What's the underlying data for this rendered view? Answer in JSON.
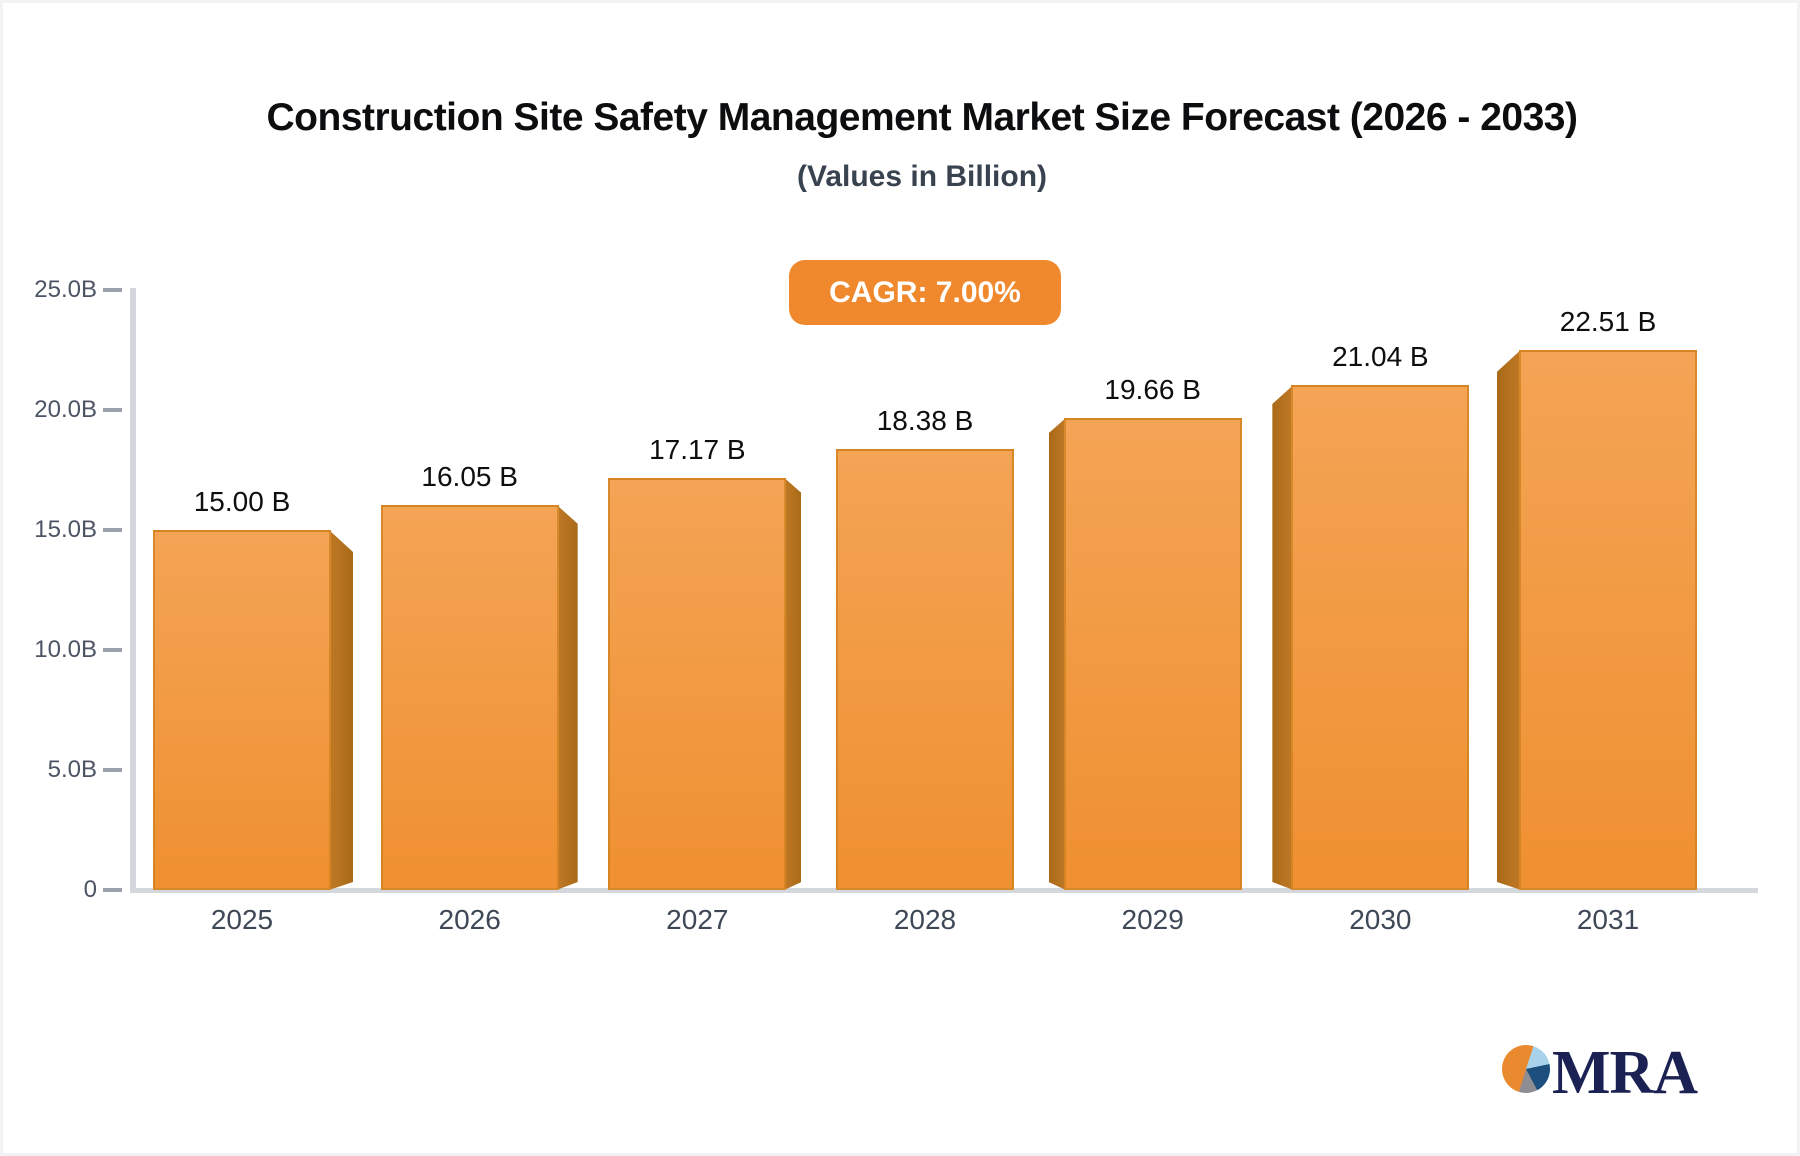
{
  "page": {
    "title": "Construction Site Safety Management Market Size Forecast (2026 - 2033)",
    "subtitle": "(Values in Billion)",
    "cagr_badge": "CAGR: 7.00%",
    "logo_text": "MRA"
  },
  "colors": {
    "bar_face_top": "#F4A455",
    "bar_face_bottom": "#EF9031",
    "bar_side": "#B26F1D",
    "badge_background": "#F0892E",
    "axis_line": "#D4D7DC",
    "tick_dash": "#9AA2AD",
    "axis_text": "#4C5565",
    "value_label_text": "#0D0E10",
    "logo_navy": "#1B2153",
    "logo_pie_orange": "#EA8A2E",
    "logo_pie_light_blue": "#A7D2EA",
    "logo_pie_dark_blue": "#1C4E7E",
    "logo_pie_gray": "#8E8E92"
  },
  "chart_data": {
    "type": "bar",
    "title": "Construction Site Safety Management Market Size Forecast (2026 - 2033)",
    "subtitle": "(Values in Billion)",
    "annotation": "CAGR: 7.00%",
    "categories": [
      "2025",
      "2026",
      "2027",
      "2028",
      "2029",
      "2030",
      "2031"
    ],
    "values": [
      15.0,
      16.05,
      17.17,
      18.38,
      19.66,
      21.04,
      22.51
    ],
    "value_labels": [
      "15.00 B",
      "16.05 B",
      "17.17 B",
      "18.38 B",
      "19.66 B",
      "21.04 B",
      "22.51 B"
    ],
    "xlabel": "",
    "ylabel": "",
    "ylim": [
      0,
      25
    ],
    "yticks": [
      {
        "value": 25,
        "label": "25.0B"
      },
      {
        "value": 20,
        "label": "20.0B"
      },
      {
        "value": 15,
        "label": "15.0B"
      },
      {
        "value": 10,
        "label": "10.0B"
      },
      {
        "value": 5,
        "label": "5.0B"
      },
      {
        "value": 0,
        "label": "0"
      }
    ],
    "grid": false,
    "legend": false,
    "bar_style": "orange gradient with 3D side bevels facing chart center"
  }
}
